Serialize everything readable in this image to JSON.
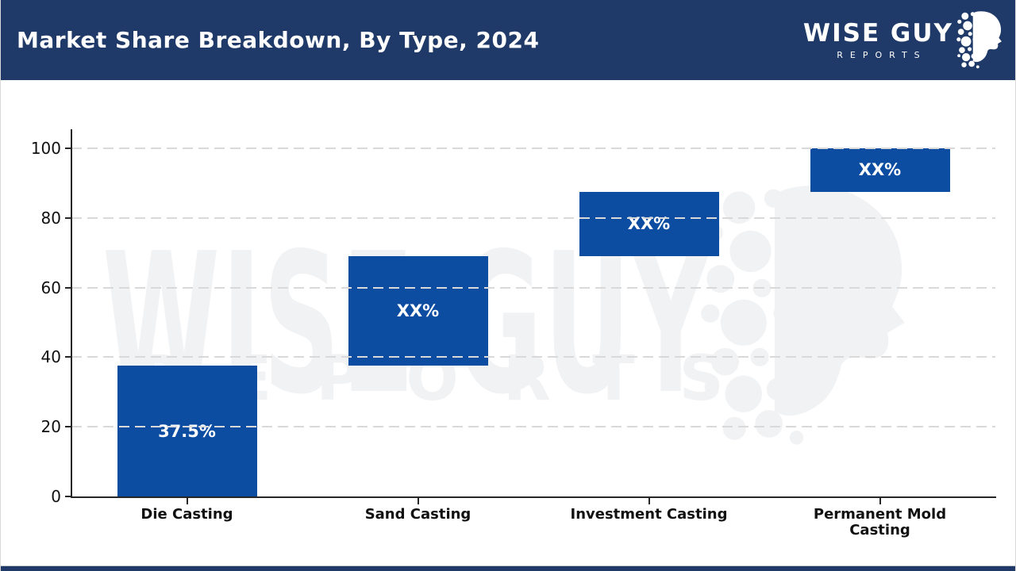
{
  "header": {
    "title": "Market Share Breakdown, By Type, 2024",
    "logo": {
      "line1": "WISE GUY",
      "line2": "REPORTS"
    }
  },
  "watermark": {
    "line1": "WISE GUY",
    "line2": "REPORTS"
  },
  "chart_data": {
    "type": "bar",
    "subtype": "waterfall",
    "title": "Market Share Breakdown, By Type, 2024",
    "categories": [
      "Die Casting",
      "Sand Casting",
      "Investment Casting",
      "Permanent Mold Casting"
    ],
    "segments": [
      {
        "category": "Die Casting",
        "start": 0,
        "end": 37.5,
        "label": "37.5%"
      },
      {
        "category": "Sand Casting",
        "start": 37.5,
        "end": 69,
        "label": "XX%"
      },
      {
        "category": "Investment Casting",
        "start": 69,
        "end": 87.5,
        "label": "XX%"
      },
      {
        "category": "Permanent Mold Casting",
        "start": 87.5,
        "end": 100,
        "label": "XX%"
      }
    ],
    "ylim": [
      0,
      100
    ],
    "yticks": [
      0,
      20,
      40,
      60,
      80,
      100
    ],
    "xlabel": "",
    "ylabel": "",
    "grid": "horizontal dashed, drawn above bars",
    "legend": "none"
  },
  "colors": {
    "header_bg": "#1f3a68",
    "bar_fill": "#0d4da1",
    "bar_label": "#ffffff",
    "grid": "#d9d9d9",
    "axis": "#262626",
    "tick_label": "#111111",
    "watermark": "#f1f2f4",
    "footer_bg": "#1f3a68",
    "page_bg": "#ffffff"
  }
}
